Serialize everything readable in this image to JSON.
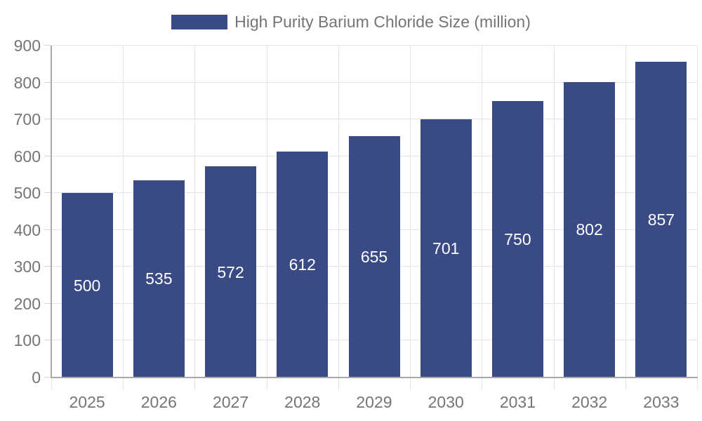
{
  "legend": {
    "label": "High Purity Barium Chloride Size (million)"
  },
  "chart_data": {
    "type": "bar",
    "title": "High Purity Barium Chloride Size (million)",
    "categories": [
      "2025",
      "2026",
      "2027",
      "2028",
      "2029",
      "2030",
      "2031",
      "2032",
      "2033"
    ],
    "values": [
      500,
      535,
      572,
      612,
      655,
      701,
      750,
      802,
      857
    ],
    "xlabel": "",
    "ylabel": "",
    "ylim": [
      0,
      900
    ],
    "yticks": [
      0,
      100,
      200,
      300,
      400,
      500,
      600,
      700,
      800,
      900
    ],
    "grid": true,
    "legend_position": "top",
    "bar_labels_visible": true,
    "colors": {
      "bar": "#3A4A84",
      "bar_label": "#FFFFFF",
      "axis_line": "#A8A8A8",
      "gridline": "#E4E4E4",
      "tick_mark": "#D4D4D4",
      "tick_text": "#757575",
      "background": "#FFFFFF"
    }
  }
}
